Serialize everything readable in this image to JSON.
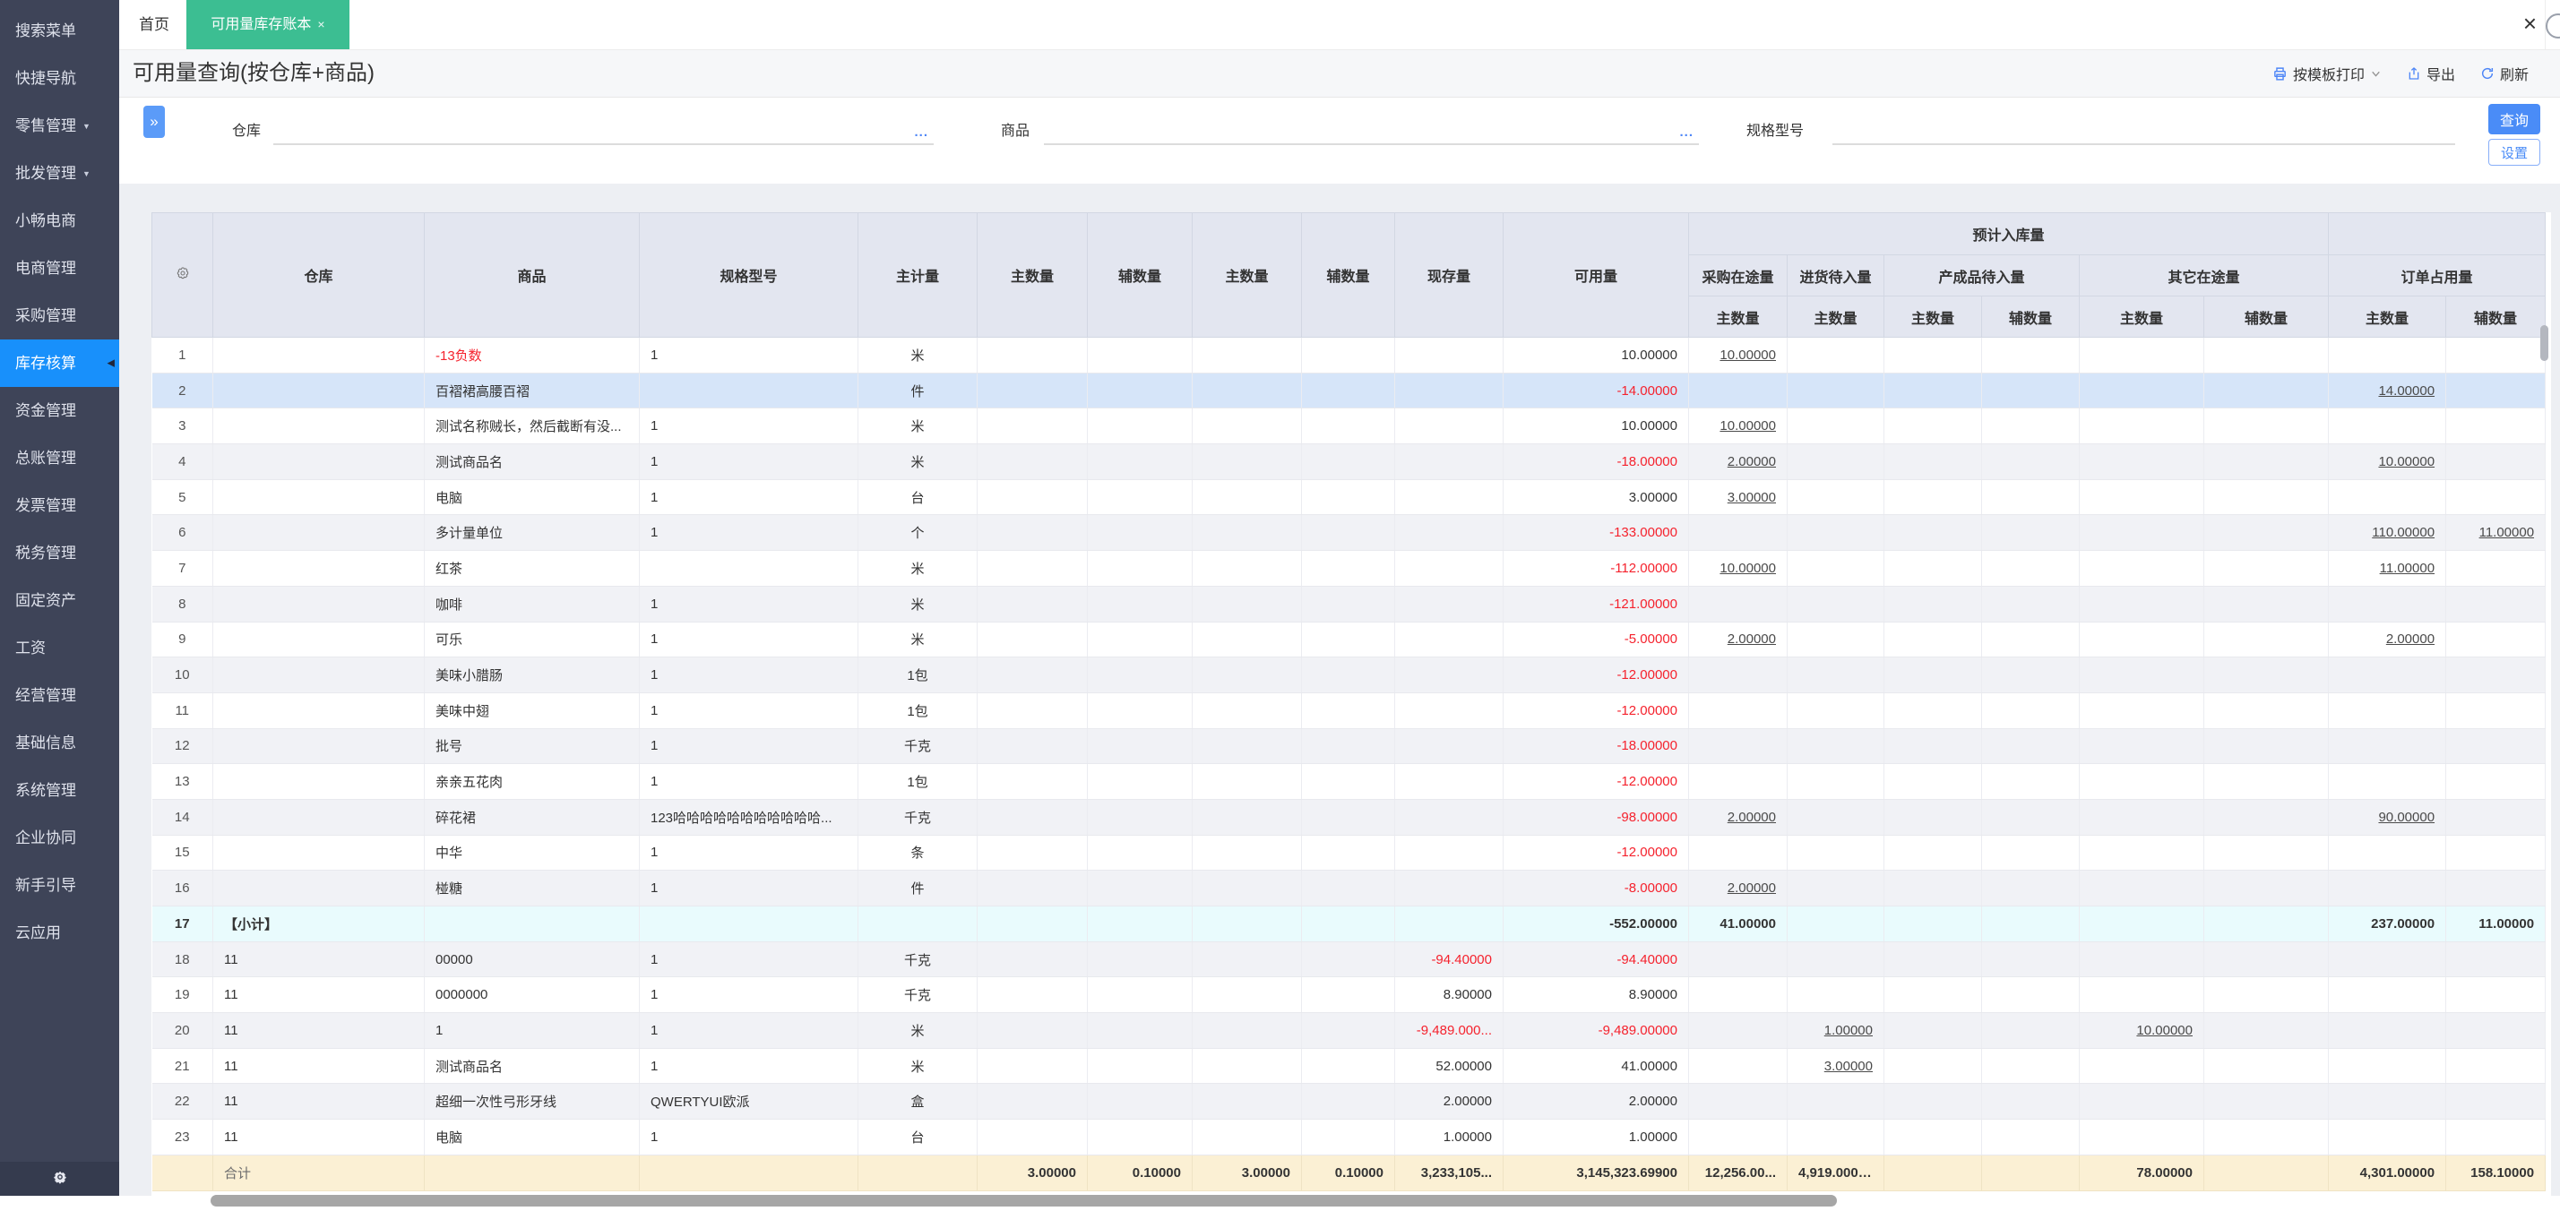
{
  "sidebar": {
    "items": [
      {
        "label": "搜索菜单"
      },
      {
        "label": "快捷导航"
      },
      {
        "label": "零售管理",
        "caret": true
      },
      {
        "label": "批发管理",
        "caret": true
      },
      {
        "label": "小畅电商"
      },
      {
        "label": "电商管理"
      },
      {
        "label": "采购管理"
      },
      {
        "label": "库存核算",
        "active": true
      },
      {
        "label": "资金管理"
      },
      {
        "label": "总账管理"
      },
      {
        "label": "发票管理"
      },
      {
        "label": "税务管理"
      },
      {
        "label": "固定资产"
      },
      {
        "label": "工资"
      },
      {
        "label": "经营管理"
      },
      {
        "label": "基础信息"
      },
      {
        "label": "系统管理"
      },
      {
        "label": "企业协同"
      },
      {
        "label": "新手引导"
      },
      {
        "label": "云应用"
      }
    ]
  },
  "tabs": {
    "home_label": "首页",
    "active_label": "可用量库存账本",
    "close_icon": "×"
  },
  "window": {
    "close_icon": "×"
  },
  "page": {
    "title": "可用量查询(按仓库+商品)"
  },
  "toolbar": {
    "print_label": "按模板打印",
    "export_label": "导出",
    "refresh_label": "刷新"
  },
  "filters": {
    "expand_icon": "»",
    "warehouse_label": "仓库",
    "product_label": "商品",
    "spec_label": "规格型号",
    "more_button": "...",
    "query_button": "查询",
    "settings_button": "设置"
  },
  "colors": {
    "accent_blue": "#1890fb",
    "tab_green": "#3cbe92",
    "negative_red": "#f5222d",
    "selected_row": "#d6e5f9",
    "subtotal_row": "#e9fbfd",
    "total_row": "#fbf0d4"
  },
  "table": {
    "header": {
      "warehouse": "仓库",
      "product": "商品",
      "spec": "规格型号",
      "main_unit": "主计量",
      "qty_cols": [
        "主数量",
        "辅数量",
        "主数量",
        "辅数量"
      ],
      "stock": "现存量",
      "available": "可用量",
      "expected_group": "预计入库量",
      "purchase_transit": "采购在途量",
      "incoming_pending": "进货待入量",
      "finished_pending": "产成品待入量",
      "other_transit": "其它在途量",
      "order_occupied": "订单占用量",
      "leaf_labels": [
        "主数量",
        "主数量",
        "主数量",
        "辅数量",
        "主数量",
        "辅数量",
        "主数量",
        "辅数量"
      ]
    },
    "rows": [
      {
        "type": "",
        "cells": [
          "1",
          "",
          [
            "-13负数",
            "r"
          ],
          "1",
          "米",
          "",
          "",
          "",
          "",
          "",
          "10.00000",
          [
            "10.00000",
            "l"
          ],
          "",
          "",
          "",
          "",
          "",
          "",
          ""
        ]
      },
      {
        "type": "selected",
        "cells": [
          "2",
          "",
          "百褶裙高腰百褶",
          "",
          "件",
          "",
          "",
          "",
          "",
          "",
          [
            "-14.00000",
            "r"
          ],
          "",
          "",
          "",
          "",
          "",
          "",
          [
            "14.00000",
            "l"
          ],
          ""
        ]
      },
      {
        "type": "",
        "cells": [
          "3",
          "",
          "测试名称贼长，然后截断有没...",
          "1",
          "米",
          "",
          "",
          "",
          "",
          "",
          "10.00000",
          [
            "10.00000",
            "l"
          ],
          "",
          "",
          "",
          "",
          "",
          "",
          ""
        ]
      },
      {
        "type": "",
        "cells": [
          "4",
          "",
          "测试商品名",
          "1",
          "米",
          "",
          "",
          "",
          "",
          "",
          [
            "-18.00000",
            "r"
          ],
          [
            "2.00000",
            "l"
          ],
          "",
          "",
          "",
          "",
          "",
          [
            "10.00000",
            "l"
          ],
          ""
        ]
      },
      {
        "type": "",
        "cells": [
          "5",
          "",
          "电脑",
          "1",
          "台",
          "",
          "",
          "",
          "",
          "",
          "3.00000",
          [
            "3.00000",
            "l"
          ],
          "",
          "",
          "",
          "",
          "",
          "",
          ""
        ]
      },
      {
        "type": "",
        "cells": [
          "6",
          "",
          "多计量单位",
          "1",
          "个",
          "",
          "",
          "",
          "",
          "",
          [
            "-133.00000",
            "r"
          ],
          "",
          "",
          "",
          "",
          "",
          "",
          [
            "110.00000",
            "l"
          ],
          [
            "11.00000",
            "l"
          ]
        ]
      },
      {
        "type": "",
        "cells": [
          "7",
          "",
          "红茶",
          "",
          "米",
          "",
          "",
          "",
          "",
          "",
          [
            "-112.00000",
            "r"
          ],
          [
            "10.00000",
            "l"
          ],
          "",
          "",
          "",
          "",
          "",
          [
            "11.00000",
            "l"
          ],
          ""
        ]
      },
      {
        "type": "",
        "cells": [
          "8",
          "",
          "咖啡",
          "1",
          "米",
          "",
          "",
          "",
          "",
          "",
          [
            "-121.00000",
            "r"
          ],
          "",
          "",
          "",
          "",
          "",
          "",
          "",
          ""
        ]
      },
      {
        "type": "",
        "cells": [
          "9",
          "",
          "可乐",
          "1",
          "米",
          "",
          "",
          "",
          "",
          "",
          [
            "-5.00000",
            "r"
          ],
          [
            "2.00000",
            "l"
          ],
          "",
          "",
          "",
          "",
          "",
          [
            "2.00000",
            "l"
          ],
          ""
        ]
      },
      {
        "type": "",
        "cells": [
          "10",
          "",
          "美味小腊肠",
          "1",
          "1包",
          "",
          "",
          "",
          "",
          "",
          [
            "-12.00000",
            "r"
          ],
          "",
          "",
          "",
          "",
          "",
          "",
          "",
          ""
        ]
      },
      {
        "type": "",
        "cells": [
          "11",
          "",
          "美味中翅",
          "1",
          "1包",
          "",
          "",
          "",
          "",
          "",
          [
            "-12.00000",
            "r"
          ],
          "",
          "",
          "",
          "",
          "",
          "",
          "",
          ""
        ]
      },
      {
        "type": "",
        "cells": [
          "12",
          "",
          "批号",
          "1",
          "千克",
          "",
          "",
          "",
          "",
          "",
          [
            "-18.00000",
            "r"
          ],
          "",
          "",
          "",
          "",
          "",
          "",
          "",
          ""
        ]
      },
      {
        "type": "",
        "cells": [
          "13",
          "",
          "亲亲五花肉",
          "1",
          "1包",
          "",
          "",
          "",
          "",
          "",
          [
            "-12.00000",
            "r"
          ],
          "",
          "",
          "",
          "",
          "",
          "",
          "",
          ""
        ]
      },
      {
        "type": "",
        "cells": [
          "14",
          "",
          "碎花裙",
          "123哈哈哈哈哈哈哈哈哈哈哈...",
          "千克",
          "",
          "",
          "",
          "",
          "",
          [
            "-98.00000",
            "r"
          ],
          [
            "2.00000",
            "l"
          ],
          "",
          "",
          "",
          "",
          "",
          [
            "90.00000",
            "l"
          ],
          ""
        ]
      },
      {
        "type": "",
        "cells": [
          "15",
          "",
          "中华",
          "1",
          "条",
          "",
          "",
          "",
          "",
          "",
          [
            "-12.00000",
            "r"
          ],
          "",
          "",
          "",
          "",
          "",
          "",
          "",
          ""
        ]
      },
      {
        "type": "",
        "cells": [
          "16",
          "",
          "椪糖",
          "1",
          "件",
          "",
          "",
          "",
          "",
          "",
          [
            "-8.00000",
            "r"
          ],
          [
            "2.00000",
            "l"
          ],
          "",
          "",
          "",
          "",
          "",
          "",
          ""
        ]
      },
      {
        "type": "subtotal",
        "cells": [
          [
            "17",
            "b"
          ],
          [
            "【小计】",
            "b"
          ],
          "",
          "",
          "",
          "",
          "",
          "",
          "",
          "",
          [
            "-552.00000",
            "rb"
          ],
          [
            "41.00000",
            "b"
          ],
          "",
          "",
          "",
          "",
          "",
          [
            "237.00000",
            "b"
          ],
          [
            "11.00000",
            "b"
          ]
        ]
      },
      {
        "type": "",
        "cells": [
          "18",
          "11",
          "00000",
          "1",
          "千克",
          "",
          "",
          "",
          "",
          [
            "-94.40000",
            "r"
          ],
          [
            "-94.40000",
            "r"
          ],
          "",
          "",
          "",
          "",
          "",
          "",
          "",
          ""
        ]
      },
      {
        "type": "",
        "cells": [
          "19",
          "11",
          "0000000",
          "1",
          "千克",
          "",
          "",
          "",
          "",
          "8.90000",
          "8.90000",
          "",
          "",
          "",
          "",
          "",
          "",
          "",
          ""
        ]
      },
      {
        "type": "",
        "cells": [
          "20",
          "11",
          "1",
          "1",
          "米",
          "",
          "",
          "",
          "",
          [
            "-9,489.000...",
            "r"
          ],
          [
            "-9,489.00000",
            "r"
          ],
          "",
          [
            "1.00000",
            "l"
          ],
          "",
          "",
          [
            "10.00000",
            "l"
          ],
          "",
          "",
          ""
        ]
      },
      {
        "type": "",
        "cells": [
          "21",
          "11",
          "测试商品名",
          "1",
          "米",
          "",
          "",
          "",
          "",
          "52.00000",
          "41.00000",
          "",
          [
            "3.00000",
            "l"
          ],
          "",
          "",
          "",
          "",
          "",
          ""
        ]
      },
      {
        "type": "",
        "cells": [
          "22",
          "11",
          "超细一次性弓形牙线",
          "QWERTYUI欧派",
          "盒",
          "",
          "",
          "",
          "",
          "2.00000",
          "2.00000",
          "",
          "",
          "",
          "",
          "",
          "",
          "",
          ""
        ]
      },
      {
        "type": "",
        "cells": [
          "23",
          "11",
          "电脑",
          "1",
          "台",
          "",
          "",
          "",
          "",
          "1.00000",
          "1.00000",
          "",
          "",
          "",
          "",
          "",
          "",
          "",
          ""
        ]
      },
      {
        "type": "total",
        "cells": [
          "",
          "合计",
          "",
          "",
          "",
          [
            "3.00000",
            "b"
          ],
          [
            "0.10000",
            "b"
          ],
          [
            "3.00000",
            "b"
          ],
          [
            "0.10000",
            "b"
          ],
          [
            "3,233,105...",
            "b"
          ],
          [
            "3,145,323.69900",
            "b"
          ],
          [
            "12,256.00...",
            "b"
          ],
          [
            "4,919.00000",
            "b"
          ],
          "",
          "",
          [
            "78.00000",
            "b"
          ],
          "",
          [
            "4,301.00000",
            "b"
          ],
          [
            "158.10000",
            "b"
          ]
        ]
      }
    ]
  }
}
